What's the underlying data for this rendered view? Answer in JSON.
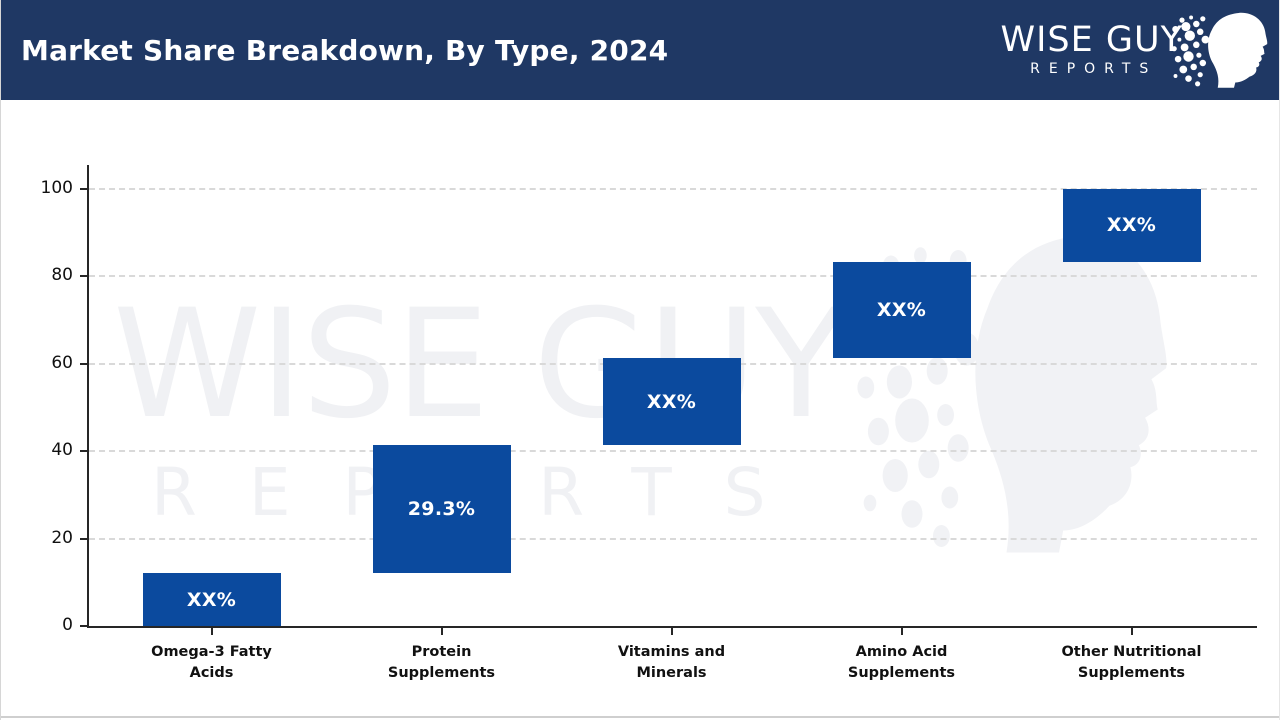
{
  "header": {
    "title": "Market Share Breakdown, By Type, 2024",
    "logo": {
      "wordmark": "WISE GUY",
      "subtext": "REPORTS"
    }
  },
  "watermark": {
    "line1": "WISE GUY",
    "line2": "REPORTS"
  },
  "colors": {
    "header_bg": "#1f3864",
    "bar": "#0b4a9e",
    "grid": "#d9d9d9",
    "axis": "#262626",
    "watermark": "#f0f1f4",
    "bar_label_text": "#ffffff"
  },
  "chart_data": {
    "type": "bar",
    "subtype": "waterfall",
    "title": "Market Share Breakdown, By Type, 2024",
    "xlabel": "",
    "ylabel": "",
    "ylim": [
      0,
      100
    ],
    "yticks": [
      0,
      20,
      40,
      60,
      80,
      100
    ],
    "grid": "horizontal-dashed",
    "legend": "none",
    "categories": [
      {
        "label": "Omega-3 Fatty Acids",
        "lines": [
          "Omega-3 Fatty",
          "Acids"
        ]
      },
      {
        "label": "Protein Supplements",
        "lines": [
          "Protein",
          "Supplements"
        ]
      },
      {
        "label": "Vitamins and Minerals",
        "lines": [
          "Vitamins and",
          "Minerals"
        ]
      },
      {
        "label": "Amino Acid Supplements",
        "lines": [
          "Amino Acid",
          "Supplements"
        ]
      },
      {
        "label": "Other Nutritional Supplements",
        "lines": [
          "Other Nutritional",
          "Supplements"
        ]
      }
    ],
    "segments": [
      {
        "label": "XX%",
        "value": 12.1,
        "start": 0,
        "end": 12.1
      },
      {
        "label": "29.3%",
        "value": 29.3,
        "start": 12.1,
        "end": 41.4
      },
      {
        "label": "XX%",
        "value": 19.8,
        "start": 41.4,
        "end": 61.2
      },
      {
        "label": "XX%",
        "value": 21.9,
        "start": 61.2,
        "end": 83.1
      },
      {
        "label": "XX%",
        "value": 16.9,
        "start": 83.1,
        "end": 100
      }
    ]
  }
}
